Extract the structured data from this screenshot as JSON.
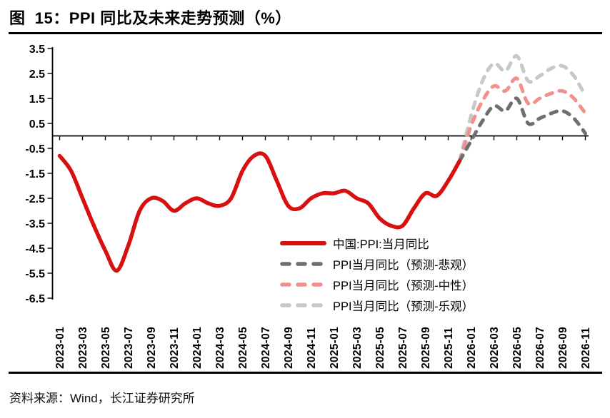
{
  "title": "图  15：PPI 同比及未来走势预测（%）",
  "source": "资料来源：Wind，长江证券研究所",
  "colors": {
    "actual": "#d8100f",
    "pessimistic": "#6f6f6f",
    "neutral": "#f2908d",
    "optimistic": "#c8c8c8",
    "axis": "#000000"
  },
  "chart_data": {
    "type": "line",
    "title": "PPI 同比及未来走势预测（%）",
    "xlabel": "",
    "ylabel": "",
    "ylim": [
      -6.5,
      3.5
    ],
    "grid": false,
    "legend_position": "inside bottom-center",
    "x_monthly_range": [
      "2023-01",
      "2026-11"
    ],
    "x_ticks": [
      "2023-01",
      "2023-03",
      "2023-05",
      "2023-07",
      "2023-09",
      "2023-11",
      "2024-01",
      "2024-03",
      "2024-05",
      "2024-07",
      "2024-09",
      "2024-11",
      "2025-01",
      "2025-03",
      "2025-05",
      "2025-07",
      "2025-09",
      "2025-11",
      "2026-01",
      "2026-03",
      "2026-05",
      "2026-07",
      "2026-09",
      "2026-11"
    ],
    "y_ticks": [
      "3.5",
      "2.5",
      "1.5",
      "0.5",
      "-0.5",
      "-1.5",
      "-2.5",
      "-3.5",
      "-4.5",
      "-5.5",
      "-6.5"
    ],
    "series": [
      {
        "name": "中国:PPI:当月同比",
        "style": "solid",
        "color_key": "actual",
        "start_month": "2023-01",
        "start_month_index": 0,
        "values": [
          -0.8,
          -1.4,
          -2.5,
          -3.6,
          -4.6,
          -5.4,
          -4.4,
          -3.0,
          -2.5,
          -2.6,
          -3.0,
          -2.7,
          -2.5,
          -2.7,
          -2.8,
          -2.5,
          -1.4,
          -0.8,
          -0.8,
          -1.8,
          -2.8,
          -2.9,
          -2.5,
          -2.3,
          -2.3,
          -2.2,
          -2.5,
          -2.7,
          -3.3,
          -3.6,
          -3.6,
          -2.9,
          -2.3,
          -2.4,
          -1.8,
          -1.0
        ]
      },
      {
        "name": "PPI当月同比（预测-悲观）",
        "style": "dashed",
        "color_key": "pessimistic",
        "start_month": "2025-12",
        "start_month_index": 35,
        "values": [
          -1.0,
          -0.2,
          0.6,
          1.2,
          1.0,
          1.5,
          0.5,
          0.7,
          0.9,
          1.0,
          0.7,
          0.1
        ]
      },
      {
        "name": "PPI当月同比（预测-中性）",
        "style": "dashed",
        "color_key": "neutral",
        "start_month": "2025-12",
        "start_month_index": 35,
        "values": [
          -1.0,
          0.4,
          1.4,
          2.0,
          1.8,
          2.3,
          1.3,
          1.5,
          1.7,
          1.8,
          1.5,
          0.9
        ]
      },
      {
        "name": "PPI当月同比（预测-乐观）",
        "style": "dashed",
        "color_key": "optimistic",
        "start_month": "2025-12",
        "start_month_index": 35,
        "values": [
          -1.0,
          0.8,
          2.2,
          2.9,
          2.6,
          3.2,
          2.2,
          2.4,
          2.7,
          2.8,
          2.4,
          1.6
        ]
      }
    ]
  }
}
